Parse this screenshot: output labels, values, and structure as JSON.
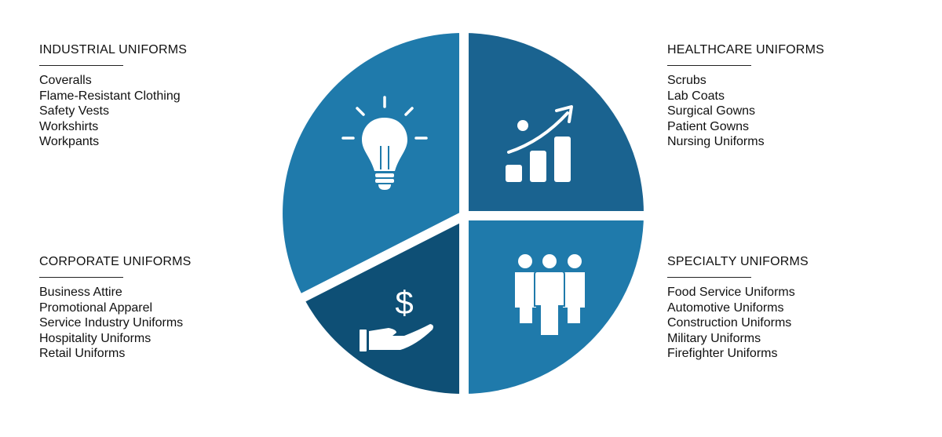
{
  "colors": {
    "segment_light": "#1f7aab",
    "segment_mid": "#1a6390",
    "segment_dark": "#0e4f75",
    "icon": "#ffffff"
  },
  "segments": [
    {
      "position": "top-left",
      "icon": "lightbulb-icon"
    },
    {
      "position": "top-right",
      "icon": "growth-chart-icon"
    },
    {
      "position": "bottom-left",
      "icon": "dollar-hand-icon"
    },
    {
      "position": "bottom-right",
      "icon": "people-group-icon"
    }
  ],
  "categories": [
    {
      "title": "INDUSTRIAL UNIFORMS",
      "items": [
        "Coveralls",
        "Flame-Resistant Clothing",
        "Safety Vests",
        "Workshirts",
        "Workpants"
      ]
    },
    {
      "title": "HEALTHCARE UNIFORMS",
      "items": [
        "Scrubs",
        "Lab Coats",
        "Surgical Gowns",
        "Patient Gowns",
        "Nursing Uniforms"
      ]
    },
    {
      "title": "CORPORATE UNIFORMS",
      "items": [
        "Business Attire",
        "Promotional Apparel",
        "Service Industry Uniforms",
        "Hospitality Uniforms",
        "Retail Uniforms"
      ]
    },
    {
      "title": "SPECIALTY UNIFORMS",
      "items": [
        "Food Service Uniforms",
        "Automotive Uniforms",
        "Construction Uniforms",
        "Military Uniforms",
        "Firefighter Uniforms"
      ]
    }
  ]
}
